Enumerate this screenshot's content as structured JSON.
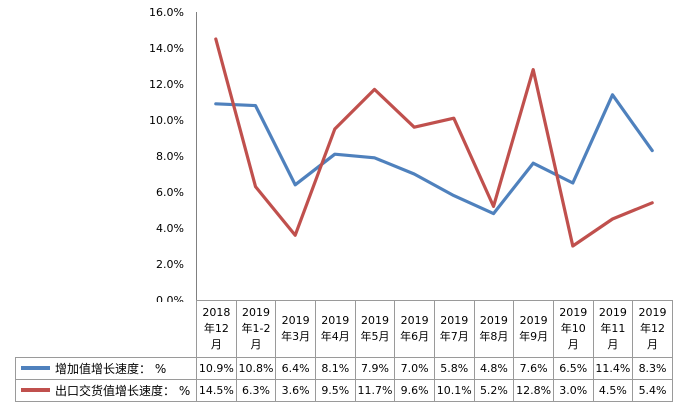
{
  "chart_data": {
    "type": "line",
    "title": "",
    "xlabel": "",
    "ylabel": "",
    "categories": [
      "2018年12月",
      "2019年1-2月",
      "2019年3月",
      "2019年4月",
      "2019年5月",
      "2019年6月",
      "2019年7月",
      "2019年8月",
      "2019年9月",
      "2019年10月",
      "2019年11月",
      "2019年12月"
    ],
    "categories_display": [
      "2018\n年12\n月",
      "2019\n年1-2\n月",
      "2019\n年3月",
      "2019\n年4月",
      "2019\n年5月",
      "2019\n年6月",
      "2019\n年7月",
      "2019\n年8月",
      "2019\n年9月",
      "2019\n年10\n月",
      "2019\n年11\n月",
      "2019\n年12\n月"
    ],
    "series": [
      {
        "name": "增加值增长速度： %",
        "color": "#4F81BD",
        "values": [
          10.9,
          10.8,
          6.4,
          8.1,
          7.9,
          7.0,
          5.8,
          4.8,
          7.6,
          6.5,
          11.4,
          8.3
        ]
      },
      {
        "name": "出口交货值增长速度： %",
        "color": "#C0504D",
        "values": [
          14.5,
          6.3,
          3.6,
          9.5,
          11.7,
          9.6,
          10.1,
          5.2,
          12.8,
          3.0,
          4.5,
          5.4
        ]
      }
    ],
    "ylim": [
      0,
      16
    ],
    "ytick_step": 2,
    "ytick_labels": [
      "0.0%",
      "2.0%",
      "4.0%",
      "6.0%",
      "8.0%",
      "10.0%",
      "12.0%",
      "14.0%",
      "16.0%"
    ],
    "value_suffix": "%",
    "grid": false,
    "legend_position": "data-table-left",
    "colors": {
      "axis": "#808080",
      "table_border": "#9a9a9a",
      "background": "#ffffff",
      "text": "#000000"
    }
  }
}
